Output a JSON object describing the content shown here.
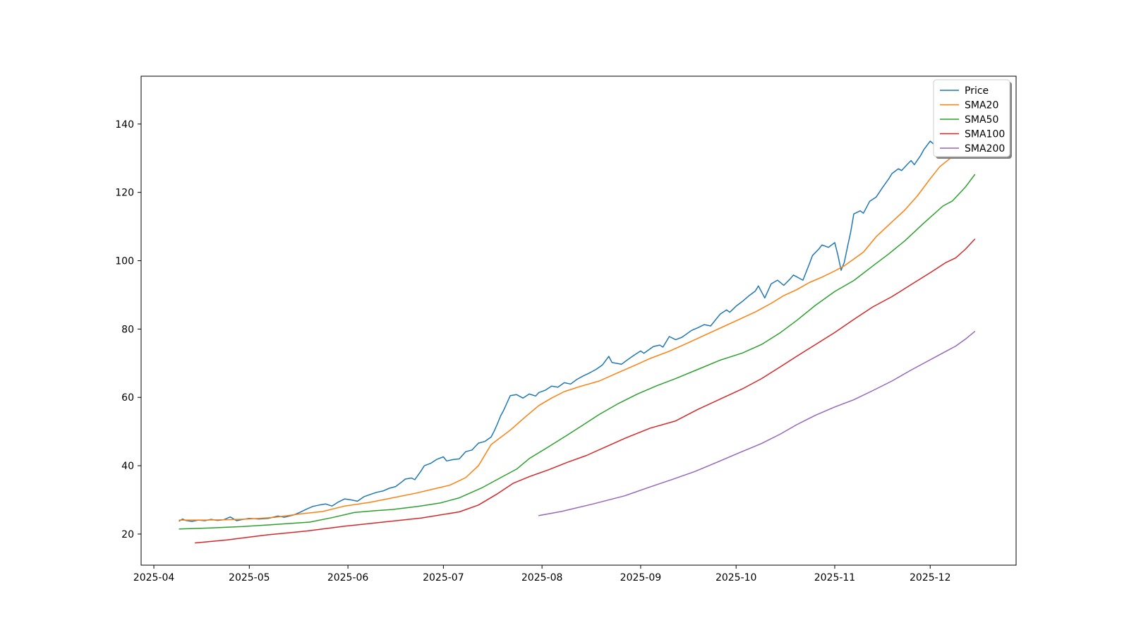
{
  "chart_data": {
    "type": "line",
    "title": "",
    "xlabel": "",
    "ylabel": "",
    "grid": false,
    "x_unit": "days since 2025-04-09",
    "xlim_days": [
      -12,
      263
    ],
    "ylim": [
      10.9,
      154.0
    ],
    "x_ticks": [
      {
        "label": "2025-04",
        "day": -8
      },
      {
        "label": "2025-05",
        "day": 22
      },
      {
        "label": "2025-06",
        "day": 53
      },
      {
        "label": "2025-07",
        "day": 83
      },
      {
        "label": "2025-08",
        "day": 114
      },
      {
        "label": "2025-09",
        "day": 145
      },
      {
        "label": "2025-10",
        "day": 175
      },
      {
        "label": "2025-11",
        "day": 206
      },
      {
        "label": "2025-12",
        "day": 236
      }
    ],
    "y_ticks": [
      20,
      40,
      60,
      80,
      100,
      120,
      140
    ],
    "legend": {
      "position": "upper right",
      "entries": [
        "Price",
        "SMA20",
        "SMA50",
        "SMA100",
        "SMA200"
      ]
    },
    "axis_color": "#000000",
    "legend_border_color": "#cccccc",
    "legend_shadow_color": "#7f7f7f",
    "series": [
      {
        "name": "Price",
        "color": "#1f77b4",
        "points": [
          [
            0,
            23.8
          ],
          [
            1,
            24.4
          ],
          [
            2,
            24.0
          ],
          [
            4,
            23.7
          ],
          [
            6,
            24.1
          ],
          [
            8,
            23.9
          ],
          [
            10,
            24.3
          ],
          [
            12,
            24.0
          ],
          [
            14,
            24.2
          ],
          [
            16,
            25.0
          ],
          [
            18,
            23.9
          ],
          [
            20,
            24.3
          ],
          [
            22,
            24.6
          ],
          [
            25,
            24.4
          ],
          [
            28,
            24.6
          ],
          [
            31,
            25.3
          ],
          [
            33,
            24.9
          ],
          [
            36,
            25.6
          ],
          [
            38,
            26.4
          ],
          [
            40,
            27.3
          ],
          [
            42,
            28.1
          ],
          [
            44,
            28.5
          ],
          [
            46,
            28.8
          ],
          [
            48,
            28.2
          ],
          [
            50,
            29.4
          ],
          [
            52,
            30.3
          ],
          [
            54,
            30.0
          ],
          [
            56,
            29.6
          ],
          [
            58,
            30.9
          ],
          [
            60,
            31.6
          ],
          [
            62,
            32.2
          ],
          [
            64,
            32.6
          ],
          [
            66,
            33.4
          ],
          [
            68,
            33.9
          ],
          [
            70,
            35.3
          ],
          [
            71,
            36.1
          ],
          [
            73,
            36.4
          ],
          [
            74,
            35.9
          ],
          [
            76,
            38.5
          ],
          [
            77,
            40.0
          ],
          [
            79,
            40.7
          ],
          [
            81,
            41.9
          ],
          [
            83,
            42.6
          ],
          [
            84,
            41.4
          ],
          [
            86,
            41.8
          ],
          [
            88,
            42.0
          ],
          [
            90,
            44.1
          ],
          [
            92,
            44.6
          ],
          [
            94,
            46.6
          ],
          [
            96,
            47.1
          ],
          [
            98,
            48.4
          ],
          [
            99,
            50.2
          ],
          [
            100,
            52.3
          ],
          [
            101,
            54.6
          ],
          [
            102,
            56.3
          ],
          [
            103,
            58.4
          ],
          [
            104,
            60.5
          ],
          [
            106,
            60.8
          ],
          [
            108,
            59.8
          ],
          [
            110,
            61.0
          ],
          [
            112,
            60.4
          ],
          [
            113,
            61.4
          ],
          [
            115,
            62.1
          ],
          [
            117,
            63.3
          ],
          [
            119,
            63.0
          ],
          [
            121,
            64.3
          ],
          [
            123,
            63.9
          ],
          [
            125,
            65.3
          ],
          [
            127,
            66.3
          ],
          [
            129,
            67.2
          ],
          [
            131,
            68.2
          ],
          [
            133,
            69.5
          ],
          [
            135,
            72.0
          ],
          [
            136,
            70.2
          ],
          [
            139,
            69.7
          ],
          [
            141,
            71.1
          ],
          [
            143,
            72.4
          ],
          [
            145,
            73.6
          ],
          [
            146,
            72.9
          ],
          [
            149,
            74.9
          ],
          [
            151,
            75.3
          ],
          [
            152,
            74.7
          ],
          [
            154,
            77.8
          ],
          [
            156,
            76.9
          ],
          [
            158,
            77.6
          ],
          [
            161,
            79.6
          ],
          [
            163,
            80.4
          ],
          [
            165,
            81.3
          ],
          [
            167,
            80.9
          ],
          [
            170,
            84.4
          ],
          [
            172,
            85.6
          ],
          [
            173,
            84.9
          ],
          [
            175,
            86.7
          ],
          [
            177,
            88.1
          ],
          [
            179,
            89.7
          ],
          [
            181,
            91.1
          ],
          [
            182,
            92.6
          ],
          [
            184,
            89.1
          ],
          [
            186,
            93.2
          ],
          [
            188,
            94.3
          ],
          [
            190,
            92.8
          ],
          [
            192,
            94.7
          ],
          [
            193,
            95.8
          ],
          [
            196,
            94.3
          ],
          [
            198,
            99.0
          ],
          [
            199,
            101.5
          ],
          [
            201,
            103.4
          ],
          [
            202,
            104.6
          ],
          [
            204,
            103.9
          ],
          [
            206,
            105.3
          ],
          [
            207,
            101.6
          ],
          [
            208,
            97.2
          ],
          [
            209,
            99.5
          ],
          [
            210,
            104.0
          ],
          [
            211,
            108.3
          ],
          [
            212,
            113.7
          ],
          [
            214,
            114.6
          ],
          [
            215,
            113.9
          ],
          [
            217,
            117.4
          ],
          [
            219,
            118.6
          ],
          [
            221,
            121.4
          ],
          [
            223,
            124.0
          ],
          [
            224,
            125.5
          ],
          [
            226,
            126.9
          ],
          [
            227,
            126.4
          ],
          [
            229,
            128.4
          ],
          [
            230,
            129.3
          ],
          [
            231,
            128.1
          ],
          [
            233,
            130.8
          ],
          [
            234,
            132.5
          ],
          [
            236,
            135.0
          ],
          [
            237,
            134.2
          ],
          [
            238,
            137.4
          ],
          [
            240,
            138.9
          ],
          [
            242,
            140.2
          ],
          [
            244,
            142.0
          ],
          [
            246,
            143.5
          ],
          [
            248,
            145.3
          ],
          [
            250,
            147.2
          ]
        ]
      },
      {
        "name": "SMA20",
        "color": "#ff7f0e",
        "points": [
          [
            0,
            24.1
          ],
          [
            8,
            24.1
          ],
          [
            15,
            24.2
          ],
          [
            22,
            24.4
          ],
          [
            30,
            24.9
          ],
          [
            38,
            25.9
          ],
          [
            45,
            26.6
          ],
          [
            52,
            28.2
          ],
          [
            60,
            29.3
          ],
          [
            67,
            30.6
          ],
          [
            74,
            31.9
          ],
          [
            80,
            33.2
          ],
          [
            85,
            34.3
          ],
          [
            90,
            36.5
          ],
          [
            94,
            40.0
          ],
          [
            98,
            46.2
          ],
          [
            104,
            50.4
          ],
          [
            109,
            54.5
          ],
          [
            113,
            57.6
          ],
          [
            117,
            59.8
          ],
          [
            121,
            61.7
          ],
          [
            126,
            63.2
          ],
          [
            132,
            64.8
          ],
          [
            138,
            67.3
          ],
          [
            143,
            69.3
          ],
          [
            148,
            71.4
          ],
          [
            154,
            73.5
          ],
          [
            160,
            76.0
          ],
          [
            167,
            79.0
          ],
          [
            175,
            82.4
          ],
          [
            181,
            85.0
          ],
          [
            186,
            87.5
          ],
          [
            190,
            89.8
          ],
          [
            194,
            91.5
          ],
          [
            198,
            93.6
          ],
          [
            202,
            95.2
          ],
          [
            206,
            97.0
          ],
          [
            209,
            98.5
          ],
          [
            212,
            100.5
          ],
          [
            215,
            102.5
          ],
          [
            219,
            107.0
          ],
          [
            223,
            110.5
          ],
          [
            228,
            114.8
          ],
          [
            232,
            119.0
          ],
          [
            236,
            124.0
          ],
          [
            239,
            127.5
          ],
          [
            243,
            130.5
          ],
          [
            246,
            133.0
          ],
          [
            250,
            136.0
          ]
        ]
      },
      {
        "name": "SMA50",
        "color": "#2ca02c",
        "points": [
          [
            0,
            21.5
          ],
          [
            10,
            21.8
          ],
          [
            20,
            22.2
          ],
          [
            30,
            22.8
          ],
          [
            41,
            23.5
          ],
          [
            48,
            24.8
          ],
          [
            55,
            26.3
          ],
          [
            61,
            26.8
          ],
          [
            67,
            27.2
          ],
          [
            75,
            28.1
          ],
          [
            82,
            29.1
          ],
          [
            88,
            30.6
          ],
          [
            95,
            33.5
          ],
          [
            101,
            36.5
          ],
          [
            106,
            39.0
          ],
          [
            110,
            42.1
          ],
          [
            116,
            45.5
          ],
          [
            122,
            49.0
          ],
          [
            127,
            52.0
          ],
          [
            132,
            55.0
          ],
          [
            138,
            58.2
          ],
          [
            144,
            61.0
          ],
          [
            150,
            63.4
          ],
          [
            156,
            65.5
          ],
          [
            163,
            68.2
          ],
          [
            170,
            70.9
          ],
          [
            177,
            73.0
          ],
          [
            183,
            75.5
          ],
          [
            189,
            79.0
          ],
          [
            194,
            82.5
          ],
          [
            200,
            87.0
          ],
          [
            206,
            91.0
          ],
          [
            212,
            94.2
          ],
          [
            218,
            98.5
          ],
          [
            223,
            102.0
          ],
          [
            228,
            105.8
          ],
          [
            234,
            111.0
          ],
          [
            240,
            116.0
          ],
          [
            243,
            117.5
          ],
          [
            247,
            121.5
          ],
          [
            250,
            125.2
          ]
        ]
      },
      {
        "name": "SMA100",
        "color": "#d62728",
        "points": [
          [
            5,
            17.4
          ],
          [
            15,
            18.3
          ],
          [
            28,
            19.8
          ],
          [
            40,
            20.9
          ],
          [
            52,
            22.3
          ],
          [
            64,
            23.5
          ],
          [
            76,
            24.7
          ],
          [
            88,
            26.5
          ],
          [
            94,
            28.5
          ],
          [
            100,
            31.8
          ],
          [
            105,
            34.9
          ],
          [
            110,
            36.8
          ],
          [
            116,
            38.8
          ],
          [
            122,
            41.0
          ],
          [
            128,
            43.0
          ],
          [
            134,
            45.5
          ],
          [
            140,
            48.0
          ],
          [
            148,
            51.0
          ],
          [
            156,
            53.1
          ],
          [
            163,
            56.5
          ],
          [
            170,
            59.5
          ],
          [
            177,
            62.5
          ],
          [
            183,
            65.5
          ],
          [
            189,
            69.0
          ],
          [
            194,
            72.0
          ],
          [
            200,
            75.5
          ],
          [
            206,
            79.0
          ],
          [
            212,
            82.8
          ],
          [
            218,
            86.5
          ],
          [
            224,
            89.5
          ],
          [
            230,
            93.0
          ],
          [
            236,
            96.5
          ],
          [
            241,
            99.5
          ],
          [
            244,
            100.8
          ],
          [
            247,
            103.3
          ],
          [
            250,
            106.3
          ]
        ]
      },
      {
        "name": "SMA200",
        "color": "#9467bd",
        "points": [
          [
            113,
            25.4
          ],
          [
            120,
            26.6
          ],
          [
            130,
            28.8
          ],
          [
            140,
            31.2
          ],
          [
            148,
            33.8
          ],
          [
            155,
            36.0
          ],
          [
            162,
            38.3
          ],
          [
            169,
            41.0
          ],
          [
            176,
            43.8
          ],
          [
            183,
            46.5
          ],
          [
            189,
            49.3
          ],
          [
            194,
            52.0
          ],
          [
            200,
            54.8
          ],
          [
            206,
            57.2
          ],
          [
            212,
            59.3
          ],
          [
            218,
            62.0
          ],
          [
            224,
            64.8
          ],
          [
            230,
            68.0
          ],
          [
            236,
            71.0
          ],
          [
            241,
            73.5
          ],
          [
            244,
            75.0
          ],
          [
            247,
            77.0
          ],
          [
            250,
            79.3
          ]
        ]
      }
    ]
  }
}
